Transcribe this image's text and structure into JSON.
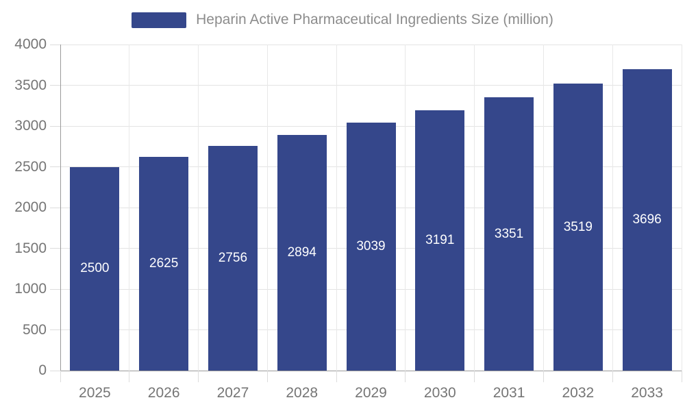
{
  "legend": {
    "label": "Heparin Active Pharmaceutical Ingredients Size (million)"
  },
  "chart_data": {
    "type": "bar",
    "title": "Heparin Active Pharmaceutical Ingredients Size (million)",
    "categories": [
      "2025",
      "2026",
      "2027",
      "2028",
      "2029",
      "2030",
      "2031",
      "2032",
      "2033"
    ],
    "series": [
      {
        "name": "Heparin Active Pharmaceutical Ingredients Size (million)",
        "values": [
          2500,
          2625,
          2756,
          2894,
          3039,
          3191,
          3351,
          3519,
          3696
        ]
      }
    ],
    "xlabel": "",
    "ylabel": "",
    "ylim": [
      0,
      4000
    ],
    "ytick_step": 500,
    "ytick_labels": [
      "0",
      "500",
      "1000",
      "1500",
      "2000",
      "2500",
      "3000",
      "3500",
      "4000"
    ],
    "grid": true,
    "legend_position": "top",
    "value_labels": "inside-center",
    "colors": {
      "bar": "#35478b",
      "value_label": "#ffffff",
      "axis_label": "#757575",
      "legend_text": "#8c8c8c",
      "gridline": "#e3e3e3",
      "axis_line": "#9a9a9a"
    }
  }
}
